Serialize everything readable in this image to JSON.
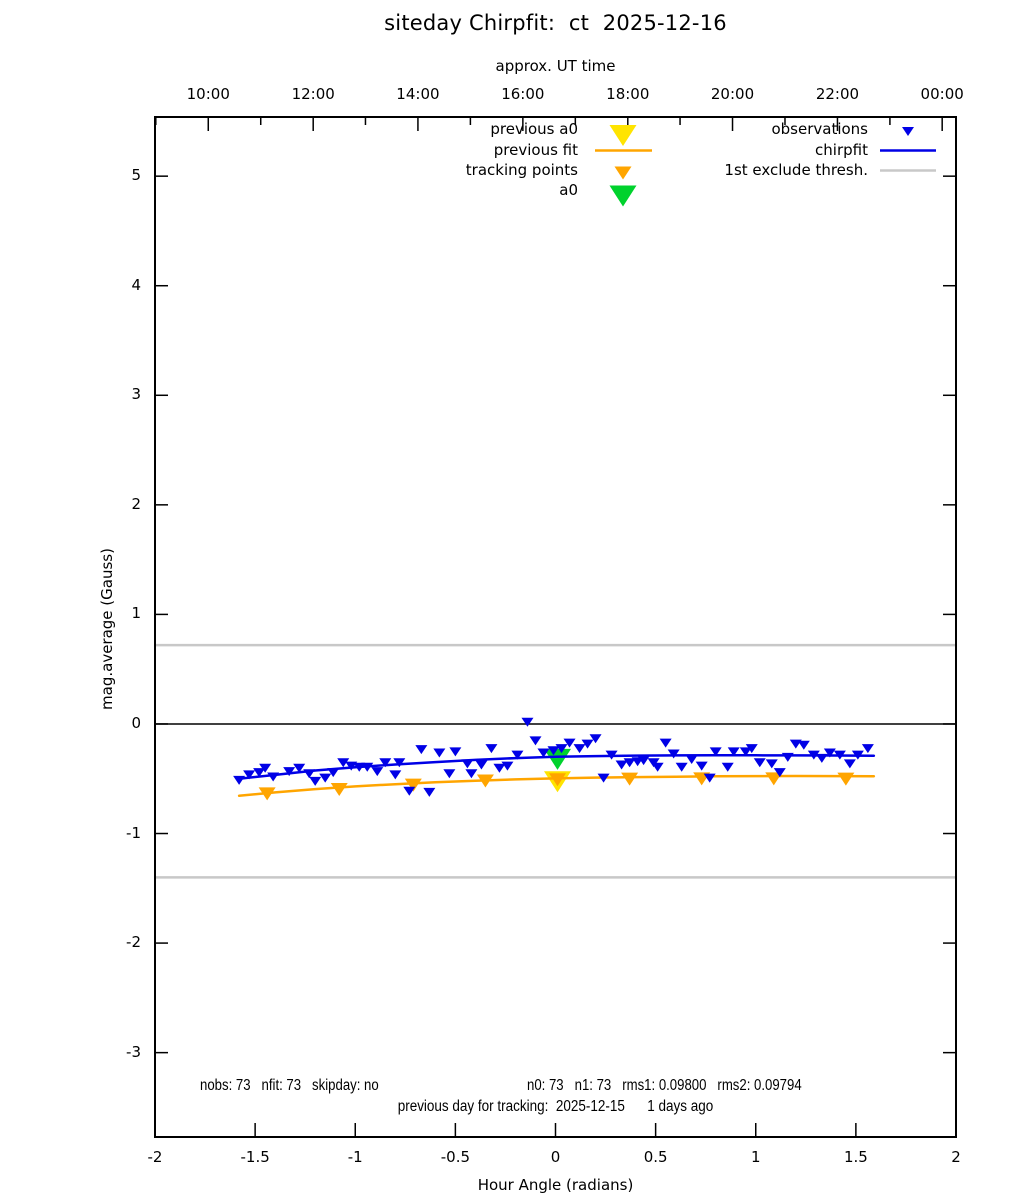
{
  "title": "siteday Chirpfit:  ct  2025-12-16",
  "top_axis": {
    "label": "approx. UT time",
    "tick_labels": [
      "10:00",
      "12:00",
      "14:00",
      "16:00",
      "18:00",
      "20:00",
      "22:00",
      "00:00"
    ]
  },
  "bottom_axis": {
    "label": "Hour Angle (radians)",
    "tick_labels": [
      "-2",
      "-1.5",
      "-1",
      "-0.5",
      "0",
      "0.5",
      "1",
      "1.5",
      "2"
    ]
  },
  "left_axis": {
    "label": "mag.average (Gauss)",
    "tick_labels": [
      "5",
      "4",
      "3",
      "2",
      "1",
      "0",
      "-1",
      "-2",
      "-3"
    ]
  },
  "legend": {
    "left_column": [
      {
        "label": "previous a0",
        "marker": "triangle-large",
        "color": "#ffe400"
      },
      {
        "label": "previous fit",
        "marker": "line",
        "color": "#ffa500"
      },
      {
        "label": "tracking points",
        "marker": "triangle-medium",
        "color": "#ffa500"
      },
      {
        "label": "a0",
        "marker": "triangle-large",
        "color": "#00d22d"
      }
    ],
    "right_column": [
      {
        "label": "observations",
        "marker": "triangle-small",
        "color": "#0000e6"
      },
      {
        "label": "chirpfit",
        "marker": "line",
        "color": "#0000e6"
      },
      {
        "label": "1st exclude thresh.",
        "marker": "line",
        "color": "#c8c8c8"
      }
    ]
  },
  "stats": {
    "line1_left": "nobs: 73   nfit: 73   skipday: no",
    "line1_right": "n0: 73   n1: 73   rms1: 0.09800   rms2: 0.09794",
    "line2": "previous day for tracking:  2025-12-15      1 days ago"
  },
  "chart_data": {
    "type": "scatter",
    "title": "siteday Chirpfit:  ct  2025-12-16",
    "xlabel": "Hour Angle (radians)",
    "ylabel": "mag.average (Gauss)",
    "x2label": "approx. UT time",
    "xlim": [
      -2,
      2
    ],
    "ylim": [
      -3.77,
      5.54
    ],
    "x_ticks": [
      -2,
      -1.5,
      -1,
      -0.5,
      0,
      0.5,
      1,
      1.5,
      2
    ],
    "y_ticks": [
      5,
      4,
      3,
      2,
      1,
      0,
      -1,
      -2,
      -3
    ],
    "x2_ticks": [
      {
        "label": "10:00",
        "x": -1.734
      },
      {
        "label": "12:00",
        "x": -1.21
      },
      {
        "label": "14:00",
        "x": -0.687
      },
      {
        "label": "16:00",
        "x": -0.163
      },
      {
        "label": "18:00",
        "x": 0.361
      },
      {
        "label": "20:00",
        "x": 0.884
      },
      {
        "label": "22:00",
        "x": 1.408
      },
      {
        "label": "00:00",
        "x": 1.931
      }
    ],
    "x2_minor_ticks": [
      -1.996,
      -1.472,
      -0.949,
      -0.425,
      0.099,
      0.622,
      1.146,
      1.67
    ],
    "zero_line_y": 0,
    "grid": false,
    "legend_position": "top-inside",
    "series": [
      {
        "name": "1st exclude thresh.",
        "type": "hlines",
        "color": "#c8c8c8",
        "values": [
          0.72,
          -1.4
        ]
      },
      {
        "name": "previous a0",
        "type": "points",
        "marker": "triangle-down",
        "marker_size": "large",
        "color": "#ffe400",
        "points": [
          [
            0.01,
            -0.505
          ]
        ]
      },
      {
        "name": "previous fit",
        "type": "line",
        "color": "#ffa500",
        "points": [
          [
            -1.58,
            -0.655
          ],
          [
            -1.4,
            -0.625
          ],
          [
            -1.2,
            -0.595
          ],
          [
            -1.0,
            -0.57
          ],
          [
            -0.8,
            -0.55
          ],
          [
            -0.6,
            -0.532
          ],
          [
            -0.4,
            -0.518
          ],
          [
            -0.2,
            -0.506
          ],
          [
            0.0,
            -0.497
          ],
          [
            0.2,
            -0.49
          ],
          [
            0.4,
            -0.485
          ],
          [
            0.6,
            -0.481
          ],
          [
            0.8,
            -0.478
          ],
          [
            1.0,
            -0.476
          ],
          [
            1.2,
            -0.475
          ],
          [
            1.4,
            -0.476
          ],
          [
            1.59,
            -0.478
          ]
        ]
      },
      {
        "name": "tracking points",
        "type": "points",
        "marker": "triangle-down",
        "marker_size": "medium",
        "color": "#ffa500",
        "points": [
          [
            -1.44,
            -0.625
          ],
          [
            -1.08,
            -0.585
          ],
          [
            -0.71,
            -0.545
          ],
          [
            -0.35,
            -0.507
          ],
          [
            0.01,
            -0.495
          ],
          [
            0.37,
            -0.49
          ],
          [
            0.73,
            -0.488
          ],
          [
            1.09,
            -0.487
          ],
          [
            1.45,
            -0.49
          ]
        ]
      },
      {
        "name": "a0",
        "type": "points",
        "marker": "triangle-down",
        "marker_size": "large",
        "color": "#00d22d",
        "points": [
          [
            0.01,
            -0.3
          ]
        ]
      },
      {
        "name": "chirpfit",
        "type": "line",
        "color": "#0000e6",
        "points": [
          [
            -1.58,
            -0.5
          ],
          [
            -1.4,
            -0.465
          ],
          [
            -1.2,
            -0.425
          ],
          [
            -1.0,
            -0.395
          ],
          [
            -0.8,
            -0.37
          ],
          [
            -0.6,
            -0.348
          ],
          [
            -0.4,
            -0.328
          ],
          [
            -0.2,
            -0.312
          ],
          [
            0.0,
            -0.3
          ],
          [
            0.2,
            -0.293
          ],
          [
            0.4,
            -0.289
          ],
          [
            0.6,
            -0.287
          ],
          [
            0.8,
            -0.286
          ],
          [
            1.0,
            -0.286
          ],
          [
            1.2,
            -0.287
          ],
          [
            1.4,
            -0.288
          ],
          [
            1.59,
            -0.29
          ]
        ]
      },
      {
        "name": "observations",
        "type": "points",
        "marker": "triangle-down",
        "marker_size": "small",
        "color": "#0000e6",
        "points": [
          [
            -1.58,
            -0.51
          ],
          [
            -1.53,
            -0.46
          ],
          [
            -1.48,
            -0.44
          ],
          [
            -1.45,
            -0.4
          ],
          [
            -1.41,
            -0.48
          ],
          [
            -1.33,
            -0.43
          ],
          [
            -1.28,
            -0.4
          ],
          [
            -1.23,
            -0.45
          ],
          [
            -1.2,
            -0.52
          ],
          [
            -1.15,
            -0.49
          ],
          [
            -1.11,
            -0.44
          ],
          [
            -1.06,
            -0.35
          ],
          [
            -1.02,
            -0.38
          ],
          [
            -0.98,
            -0.39
          ],
          [
            -0.94,
            -0.39
          ],
          [
            -0.89,
            -0.43
          ],
          [
            -0.85,
            -0.35
          ],
          [
            -0.8,
            -0.46
          ],
          [
            -0.78,
            -0.35
          ],
          [
            -0.73,
            -0.61
          ],
          [
            -0.67,
            -0.23
          ],
          [
            -0.63,
            -0.62
          ],
          [
            -0.58,
            -0.26
          ],
          [
            -0.53,
            -0.45
          ],
          [
            -0.5,
            -0.25
          ],
          [
            -0.44,
            -0.36
          ],
          [
            -0.42,
            -0.45
          ],
          [
            -0.37,
            -0.37
          ],
          [
            -0.32,
            -0.22
          ],
          [
            -0.28,
            -0.4
          ],
          [
            -0.24,
            -0.38
          ],
          [
            -0.19,
            -0.28
          ],
          [
            -0.14,
            0.02
          ],
          [
            -0.1,
            -0.15
          ],
          [
            -0.06,
            -0.26
          ],
          [
            -0.01,
            -0.24
          ],
          [
            0.03,
            -0.22
          ],
          [
            0.07,
            -0.17
          ],
          [
            0.12,
            -0.22
          ],
          [
            0.16,
            -0.18
          ],
          [
            0.2,
            -0.13
          ],
          [
            0.24,
            -0.49
          ],
          [
            0.28,
            -0.28
          ],
          [
            0.33,
            -0.37
          ],
          [
            0.37,
            -0.35
          ],
          [
            0.41,
            -0.34
          ],
          [
            0.44,
            -0.33
          ],
          [
            0.49,
            -0.35
          ],
          [
            0.51,
            -0.39
          ],
          [
            0.55,
            -0.17
          ],
          [
            0.59,
            -0.27
          ],
          [
            0.63,
            -0.39
          ],
          [
            0.68,
            -0.32
          ],
          [
            0.73,
            -0.38
          ],
          [
            0.77,
            -0.49
          ],
          [
            0.8,
            -0.25
          ],
          [
            0.86,
            -0.39
          ],
          [
            0.89,
            -0.25
          ],
          [
            0.95,
            -0.25
          ],
          [
            0.98,
            -0.22
          ],
          [
            1.02,
            -0.35
          ],
          [
            1.08,
            -0.36
          ],
          [
            1.12,
            -0.44
          ],
          [
            1.16,
            -0.3
          ],
          [
            1.2,
            -0.18
          ],
          [
            1.24,
            -0.19
          ],
          [
            1.29,
            -0.28
          ],
          [
            1.33,
            -0.31
          ],
          [
            1.37,
            -0.26
          ],
          [
            1.42,
            -0.28
          ],
          [
            1.47,
            -0.36
          ],
          [
            1.51,
            -0.28
          ],
          [
            1.56,
            -0.22
          ]
        ]
      }
    ]
  }
}
